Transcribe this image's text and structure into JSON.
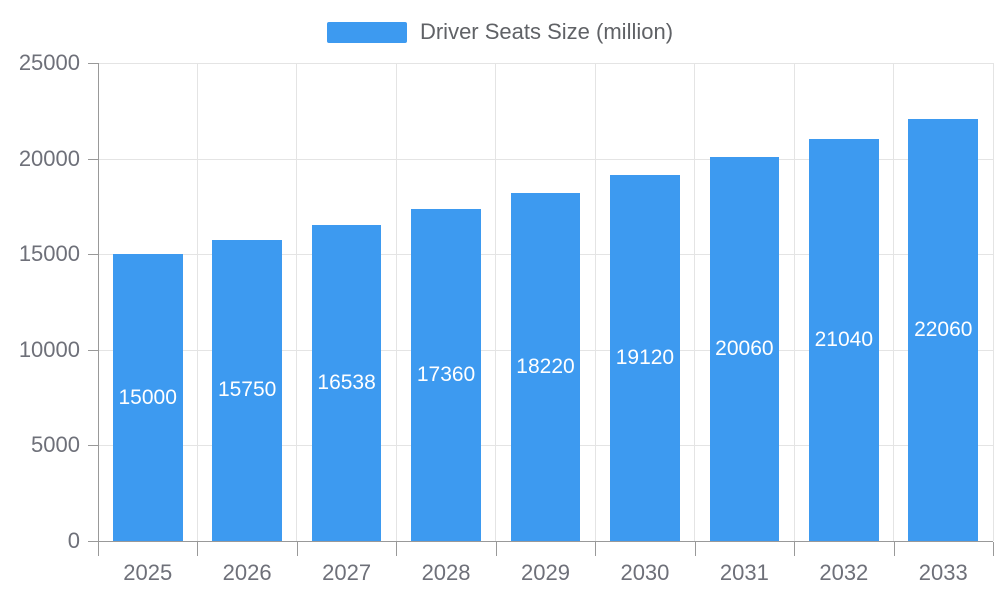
{
  "legend": {
    "label": "Driver Seats Size (million)"
  },
  "colors": {
    "bar": "#3D9AF0",
    "bar_label_text": "#FFFFFF",
    "grid_line": "#E4E4E4",
    "axis_line": "#999999",
    "axis_text": "#6E7079",
    "legend_text": "#606266"
  },
  "chart_data": {
    "type": "bar",
    "title": "Driver Seats Size (million)",
    "categories": [
      "2025",
      "2026",
      "2027",
      "2028",
      "2029",
      "2030",
      "2031",
      "2032",
      "2033"
    ],
    "series": [
      {
        "name": "Driver Seats Size (million)",
        "values": [
          15000,
          15750,
          16538,
          17360,
          18220,
          19120,
          20060,
          21040,
          22060
        ],
        "color": "#3D9AF0"
      }
    ],
    "value_labels": [
      "15000",
      "15750",
      "16538",
      "17360",
      "18220",
      "19120",
      "20060",
      "21040",
      "22060"
    ],
    "value_label_position": "inside-center",
    "xlabel": "",
    "ylabel": "",
    "ylim": [
      0,
      25000
    ],
    "y_ticks": [
      0,
      5000,
      10000,
      15000,
      20000,
      25000
    ],
    "grid": true,
    "vertical_category_gridlines": true,
    "legend_position": "top-center"
  }
}
